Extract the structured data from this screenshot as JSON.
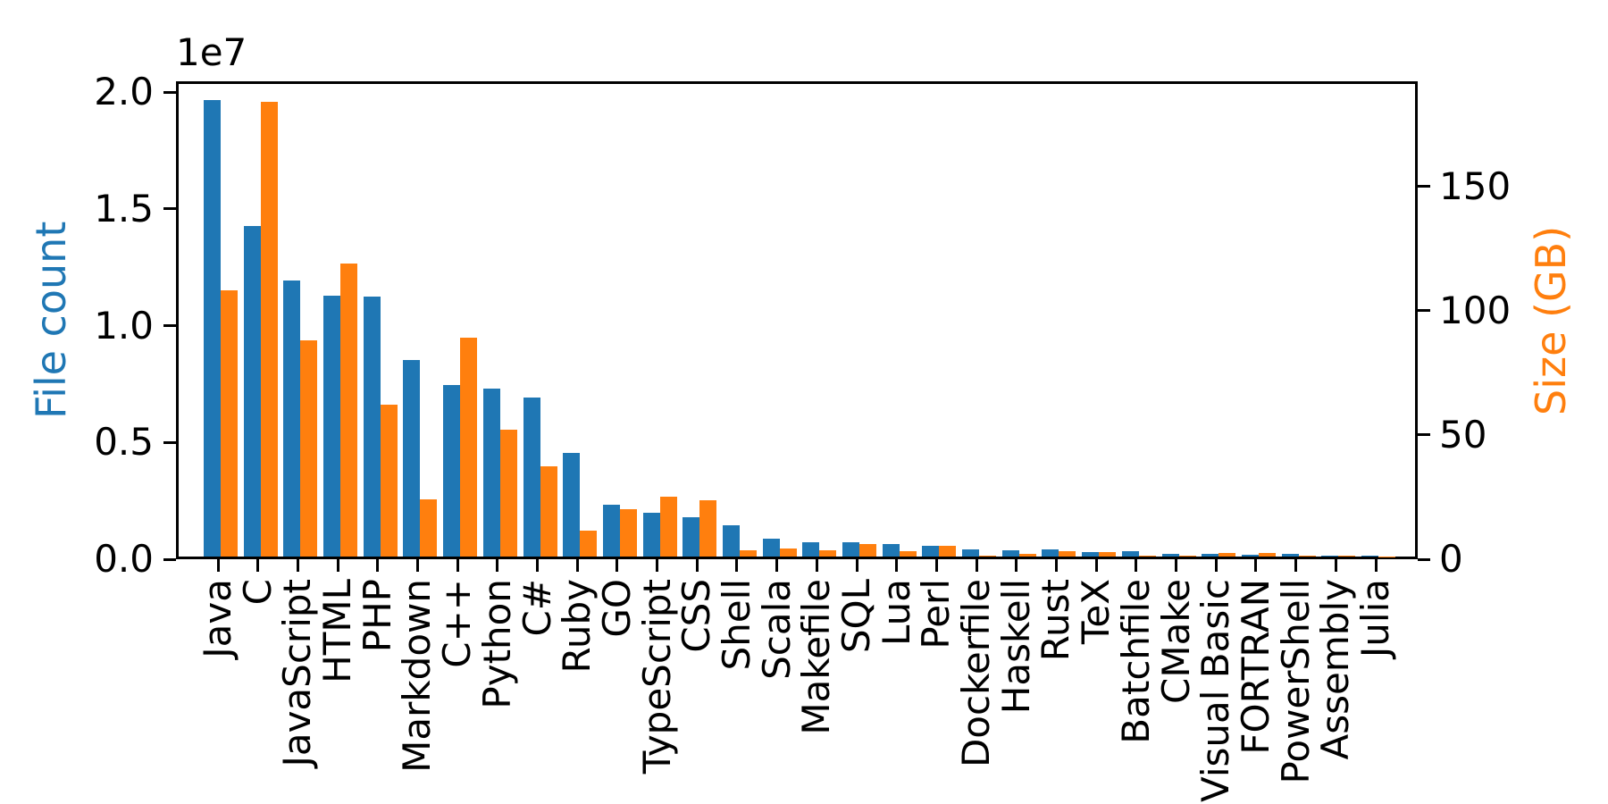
{
  "chart_data": {
    "type": "bar",
    "title": "",
    "offset_text": "1e7",
    "ylabel_left": "File count",
    "ylabel_right": "Size (GB)",
    "xlabel": "",
    "grid": false,
    "legend": "none",
    "axis_color_left": "#1f77b4",
    "axis_color_right": "#ff7f0e",
    "ylim_left": [
      0,
      20460000
    ],
    "ylim_right": [
      0,
      192.4
    ],
    "yticks_left": [
      {
        "value": 0,
        "label": "0.0"
      },
      {
        "value": 5000000,
        "label": "0.5"
      },
      {
        "value": 10000000,
        "label": "1.0"
      },
      {
        "value": 15000000,
        "label": "1.5"
      },
      {
        "value": 20000000,
        "label": "2.0"
      }
    ],
    "yticks_right": [
      {
        "value": 0,
        "label": "0"
      },
      {
        "value": 50,
        "label": "50"
      },
      {
        "value": 100,
        "label": "100"
      },
      {
        "value": 150,
        "label": "150"
      }
    ],
    "categories": [
      "Java",
      "C",
      "JavaScript",
      "HTML",
      "PHP",
      "Markdown",
      "C++",
      "Python",
      "C#",
      "Ruby",
      "GO",
      "TypeScript",
      "CSS",
      "Shell",
      "Scala",
      "Makefile",
      "SQL",
      "Lua",
      "Perl",
      "Dockerfile",
      "Haskell",
      "Rust",
      "TeX",
      "Batchfile",
      "CMake",
      "Visual Basic",
      "FORTRAN",
      "PowerShell",
      "Assembly",
      "Julia"
    ],
    "series": [
      {
        "name": "File count",
        "axis": "left",
        "color": "#1f77b4",
        "values": [
          19540000,
          14140000,
          11800000,
          11180000,
          11120000,
          8430000,
          7360000,
          7190000,
          6810000,
          4420000,
          2220000,
          1880000,
          1670000,
          1340000,
          770000,
          620000,
          610000,
          530000,
          450000,
          310000,
          280000,
          290000,
          190000,
          230000,
          130000,
          100000,
          65000,
          100000,
          40000,
          20000
        ]
      },
      {
        "name": "Size (GB)",
        "axis": "right",
        "color": "#ff7f0e",
        "values": [
          107,
          183,
          87,
          118,
          61,
          23,
          88,
          51,
          36.5,
          10.5,
          19,
          24,
          22.5,
          2.4,
          3.3,
          2.5,
          4.9,
          2.1,
          4.4,
          0.5,
          1.2,
          2.3,
          1.8,
          0.2,
          0.3,
          1.5,
          1.4,
          0.2,
          0.5,
          0.1
        ]
      }
    ]
  }
}
